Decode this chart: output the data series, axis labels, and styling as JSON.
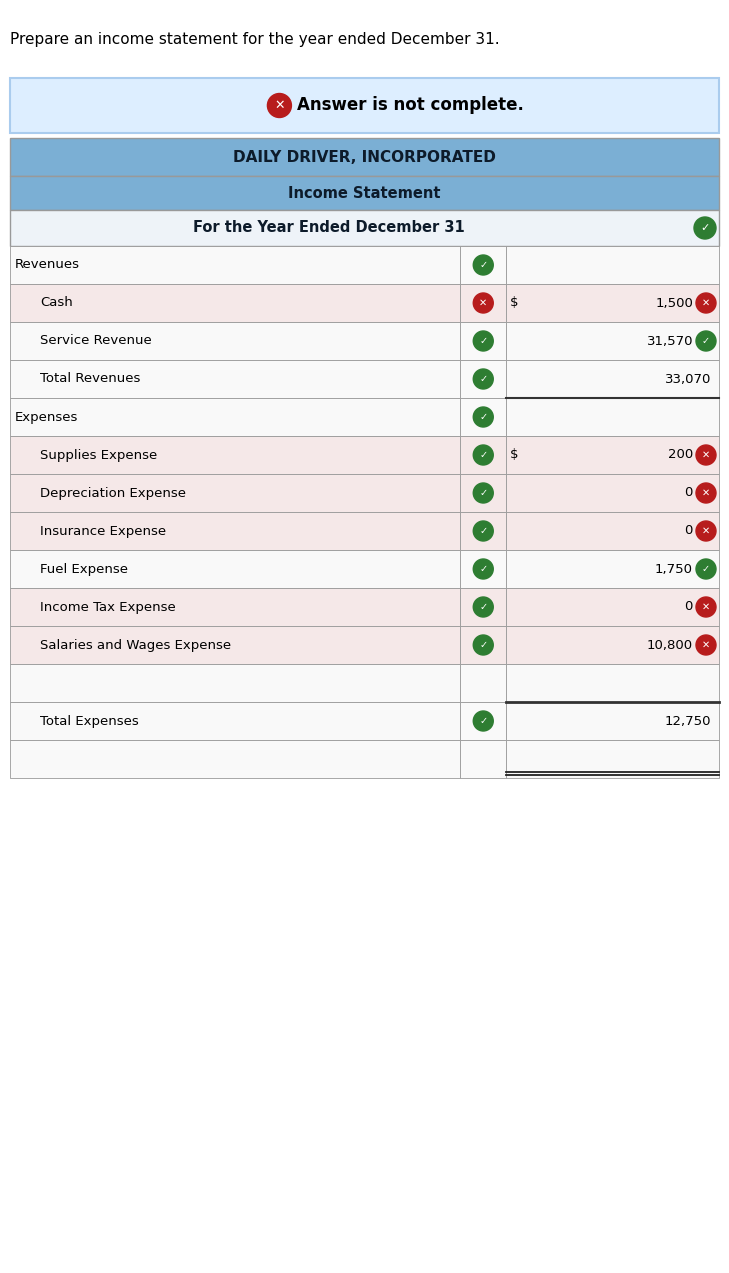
{
  "title_instruction": "Prepare an income statement for the year ended December 31.",
  "warning_text": "Answer is not complete.",
  "company_name": "DAILY DRIVER, INCORPORATED",
  "statement_title": "Income Statement",
  "period": "For the Year Ended December 31",
  "rows": [
    {
      "label": "Revenues",
      "indent": 0,
      "value": null,
      "dollar_sign": false,
      "check": "green",
      "value_check": null,
      "bg": "white"
    },
    {
      "label": "Cash",
      "indent": 1,
      "value": "1,500",
      "dollar_sign": true,
      "check": "red",
      "value_check": "red",
      "bg": "pink"
    },
    {
      "label": "Service Revenue",
      "indent": 1,
      "value": "31,570",
      "dollar_sign": false,
      "check": "green",
      "value_check": "green",
      "bg": "white"
    },
    {
      "label": "Total Revenues",
      "indent": 1,
      "value": "33,070",
      "dollar_sign": false,
      "check": "green",
      "value_check": null,
      "bg": "white",
      "underline_below": true
    },
    {
      "label": "Expenses",
      "indent": 0,
      "value": null,
      "dollar_sign": false,
      "check": "green",
      "value_check": null,
      "bg": "white"
    },
    {
      "label": "Supplies Expense",
      "indent": 1,
      "value": "200",
      "dollar_sign": true,
      "check": "green",
      "value_check": "red",
      "bg": "pink"
    },
    {
      "label": "Depreciation Expense",
      "indent": 1,
      "value": "0",
      "dollar_sign": false,
      "check": "green",
      "value_check": "red",
      "bg": "pink"
    },
    {
      "label": "Insurance Expense",
      "indent": 1,
      "value": "0",
      "dollar_sign": false,
      "check": "green",
      "value_check": "red",
      "bg": "pink"
    },
    {
      "label": "Fuel Expense",
      "indent": 1,
      "value": "1,750",
      "dollar_sign": false,
      "check": "green",
      "value_check": "green",
      "bg": "white"
    },
    {
      "label": "Income Tax Expense",
      "indent": 1,
      "value": "0",
      "dollar_sign": false,
      "check": "green",
      "value_check": "red",
      "bg": "pink"
    },
    {
      "label": "Salaries and Wages Expense",
      "indent": 1,
      "value": "10,800",
      "dollar_sign": false,
      "check": "green",
      "value_check": "red",
      "bg": "pink"
    },
    {
      "label": "",
      "indent": 0,
      "value": null,
      "dollar_sign": false,
      "check": null,
      "value_check": null,
      "bg": "white"
    },
    {
      "label": "Total Expenses",
      "indent": 1,
      "value": "12,750",
      "dollar_sign": false,
      "check": "green",
      "value_check": null,
      "bg": "white",
      "thick_top": true
    },
    {
      "label": "",
      "indent": 0,
      "value": null,
      "dollar_sign": false,
      "check": null,
      "value_check": null,
      "bg": "white",
      "double_underline": true
    }
  ],
  "header_bg": "#7bafd4",
  "header_text_color": "#0d1b2a",
  "period_bg": "#eef3f8",
  "warning_bg": "#ddeeff",
  "warning_border": "#aaccee",
  "pink_bg": "#f5e8e8",
  "white_bg": "#f9f9f9",
  "green_check_color": "#2e7d32",
  "red_x_color": "#b71c1c",
  "border_color": "#999999"
}
